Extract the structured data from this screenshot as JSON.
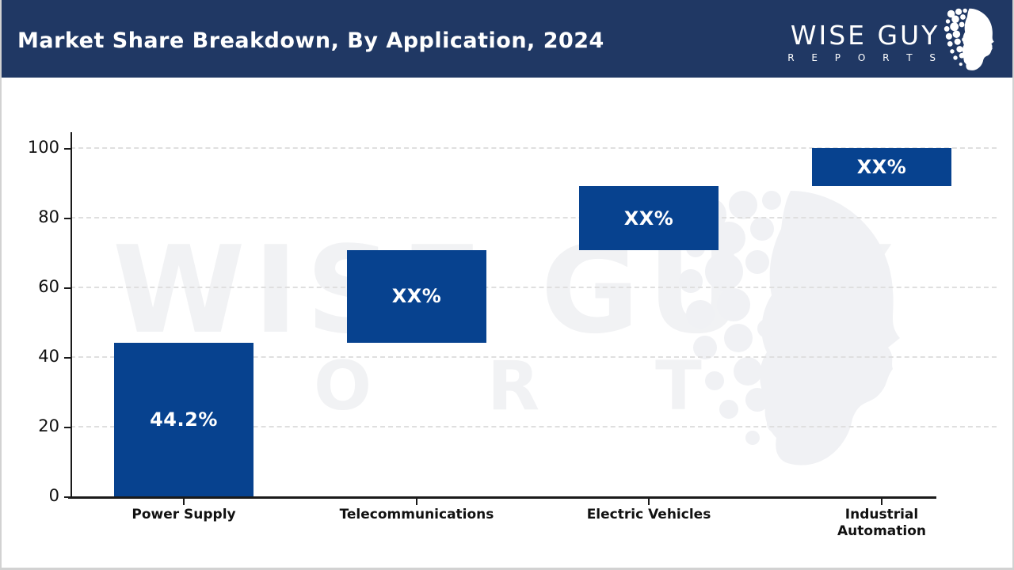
{
  "header": {
    "title": "Market Share Breakdown, By Application, 2024",
    "bg_color": "#203864",
    "logo": {
      "line1": "WISE GUY",
      "line2": "R E P O R T S"
    }
  },
  "watermark": {
    "line1": "WISE GU Y",
    "line2": "P O R T S",
    "color": "#f1f2f4"
  },
  "chart_data": {
    "type": "bar",
    "subtype": "waterfall",
    "title": "Market Share Breakdown, By Application, 2024",
    "xlabel": "",
    "ylabel": "",
    "categories": [
      "Power Supply",
      "Telecommunications",
      "Electric Vehicles",
      "Industrial Automation"
    ],
    "category_display": [
      "Power Supply",
      "Telecommunications",
      "Electric Vehicles",
      "Industrial\nAutomation"
    ],
    "segments": [
      {
        "category": "Power Supply",
        "start": 0,
        "end": 44.2,
        "value": 44.2,
        "label": "44.2%"
      },
      {
        "category": "Telecommunications",
        "start": 44.2,
        "end": 70.6,
        "value": 26.4,
        "label": "XX%"
      },
      {
        "category": "Electric Vehicles",
        "start": 70.6,
        "end": 89.0,
        "value": 18.4,
        "label": "XX%"
      },
      {
        "category": "Industrial Automation",
        "start": 89.0,
        "end": 100.0,
        "value": 11.0,
        "label": "XX%"
      }
    ],
    "yticks": [
      0,
      20,
      40,
      60,
      80,
      100
    ],
    "ylim": [
      0,
      104
    ],
    "grid": "horizontal-dashed",
    "legend": "none",
    "bar_color": "#07428f",
    "bar_label_color": "#ffffff",
    "axis_color": "#1a1a1a",
    "gridline_color": "#dfdfdf"
  }
}
